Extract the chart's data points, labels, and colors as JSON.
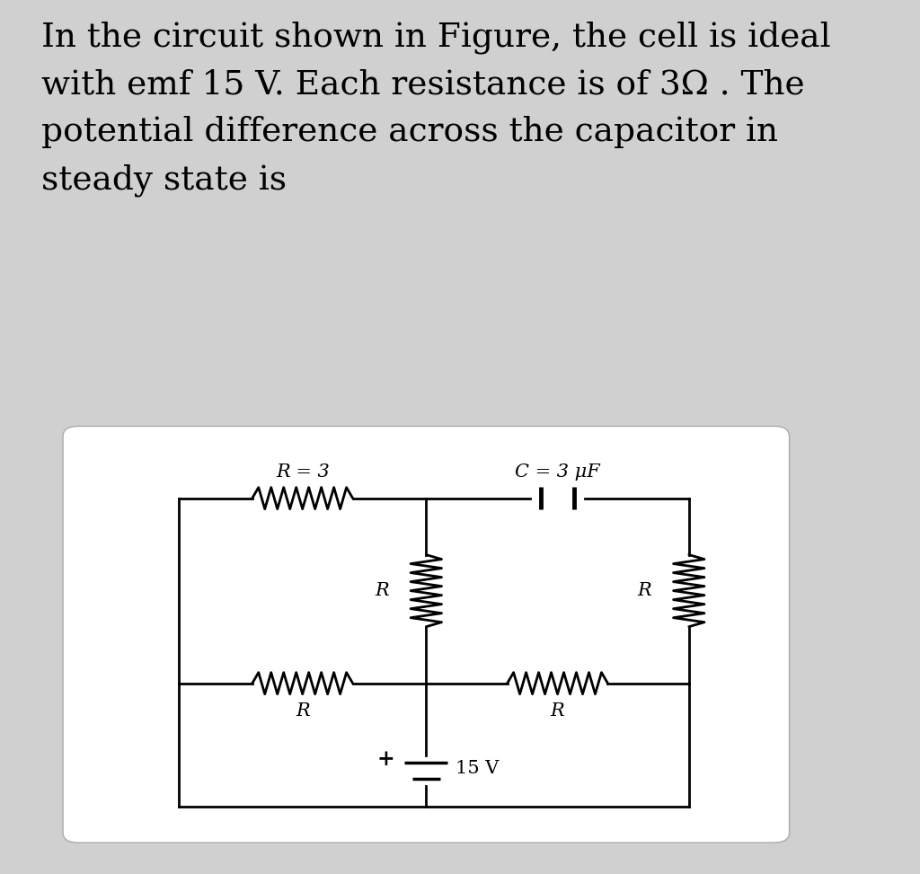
{
  "title_line1": "In the circuit shown in Figure, the cell is ideal",
  "title_line2": "with emf 15 V. Each resistance is of 3Ω . The",
  "title_line3": "potential difference across the capacitor in",
  "title_line4": "steady state is",
  "label_R3": "R = 3",
  "label_C": "C = 3 μF",
  "label_R": "R",
  "label_15V": "15 V",
  "label_plus": "+",
  "title_fontsize": 27,
  "circuit_fontsize": 15,
  "outer_bg": "#d0d0d0",
  "circuit_bg": "#ffffff",
  "text_bg": "#ffffff",
  "line_color": "#000000",
  "line_width": 2.0,
  "fig_width": 10.24,
  "fig_height": 9.73
}
